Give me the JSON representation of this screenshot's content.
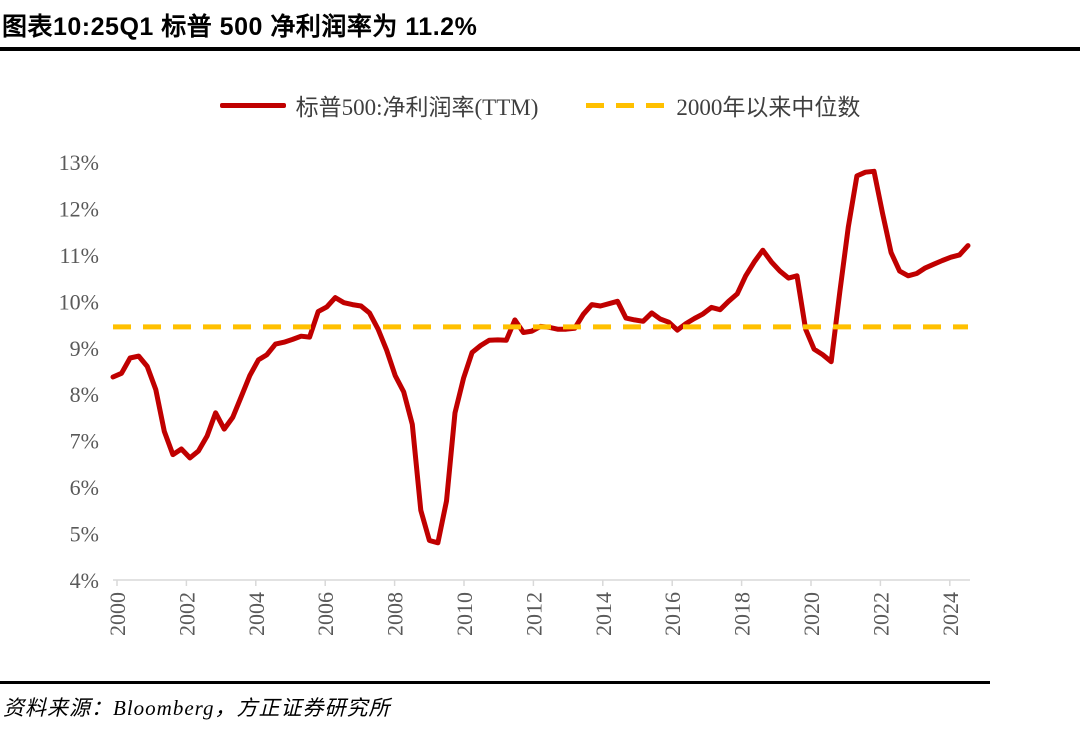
{
  "header": {
    "title": "图表10:25Q1 标普 500 净利润率为 11.2%"
  },
  "legend": [
    {
      "label": "标普500:净利润率(TTM)",
      "swatch": "solid-line",
      "color": "#C00000"
    },
    {
      "label": "2000年以来中位数",
      "swatch": "dashed-line",
      "color": "#FFC000"
    }
  ],
  "footer": {
    "source": "资料来源：Bloomberg，方正证券研究所"
  },
  "chart_data": {
    "type": "line",
    "title": "25Q1 标普 500 净利润率为 11.2%",
    "xlabel": "",
    "ylabel": "",
    "x_start": 2000,
    "x_step": 0.25,
    "x_ticks": [
      2000,
      2002,
      2004,
      2006,
      2008,
      2010,
      2012,
      2014,
      2016,
      2018,
      2020,
      2022,
      2024
    ],
    "ylim": [
      4,
      13
    ],
    "y_ticks": [
      13,
      12,
      11,
      10,
      9,
      8,
      7,
      6,
      5,
      4
    ],
    "y_tick_suffix": "%",
    "grid": false,
    "legend_position": "top",
    "axis_color": "#d9d9d9",
    "tick_label_color": "#595959",
    "series": [
      {
        "name": "标普500:净利润率(TTM)",
        "style": "solid",
        "color": "#C00000",
        "values": [
          8.37,
          8.45,
          8.78,
          8.82,
          8.6,
          8.1,
          7.2,
          6.7,
          6.82,
          6.63,
          6.78,
          7.1,
          7.6,
          7.25,
          7.5,
          7.95,
          8.4,
          8.74,
          8.85,
          9.08,
          9.12,
          9.18,
          9.25,
          9.23,
          9.78,
          9.88,
          10.08,
          9.97,
          9.93,
          9.9,
          9.75,
          9.4,
          8.95,
          8.4,
          8.05,
          7.35,
          5.5,
          4.85,
          4.8,
          5.7,
          7.6,
          8.35,
          8.9,
          9.05,
          9.16,
          9.17,
          9.16,
          9.6,
          9.33,
          9.36,
          9.46,
          9.44,
          9.4,
          9.4,
          9.42,
          9.72,
          9.93,
          9.9,
          9.95,
          10.0,
          9.64,
          9.6,
          9.57,
          9.75,
          9.62,
          9.55,
          9.38,
          9.52,
          9.63,
          9.73,
          9.87,
          9.82,
          10.0,
          10.16,
          10.55,
          10.85,
          11.1,
          10.85,
          10.65,
          10.5,
          10.55,
          9.4,
          8.97,
          8.85,
          8.7,
          10.2,
          11.6,
          12.7,
          12.78,
          12.8,
          11.9,
          11.05,
          10.65,
          10.55,
          10.6,
          10.72,
          10.8,
          10.88,
          10.95,
          11.0,
          11.2
        ]
      },
      {
        "name": "2000年以来中位数",
        "style": "dashed",
        "color": "#FFC000",
        "constant_value": 9.45
      }
    ]
  }
}
